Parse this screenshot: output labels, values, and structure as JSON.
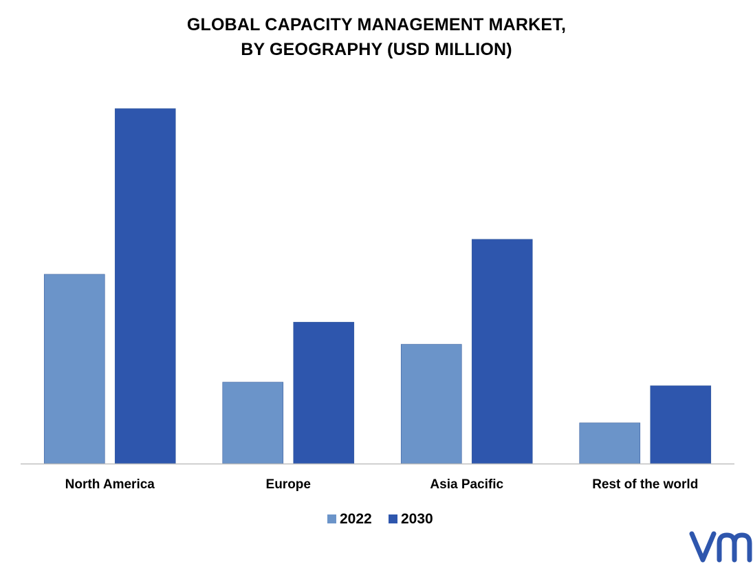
{
  "chart_data": {
    "type": "bar",
    "title_lines": [
      "GLOBAL CAPACITY MANAGEMENT MARKET,",
      "BY GEOGRAPHY (USD MILLION)"
    ],
    "categories": [
      "North America",
      "Europe",
      "Asia Pacific",
      "Rest of the world"
    ],
    "series": [
      {
        "name": "2022",
        "color": "#6B94C9",
        "values": [
          265,
          114,
          167,
          57
        ]
      },
      {
        "name": "2030",
        "color": "#2E56AD",
        "values": [
          497,
          198,
          314,
          109
        ]
      }
    ],
    "ylim": [
      0,
      520
    ],
    "grid": false,
    "legend_position": "bottom-center",
    "xlabel": "",
    "ylabel": ""
  },
  "brand": {
    "logo_color": "#2E56AD"
  }
}
